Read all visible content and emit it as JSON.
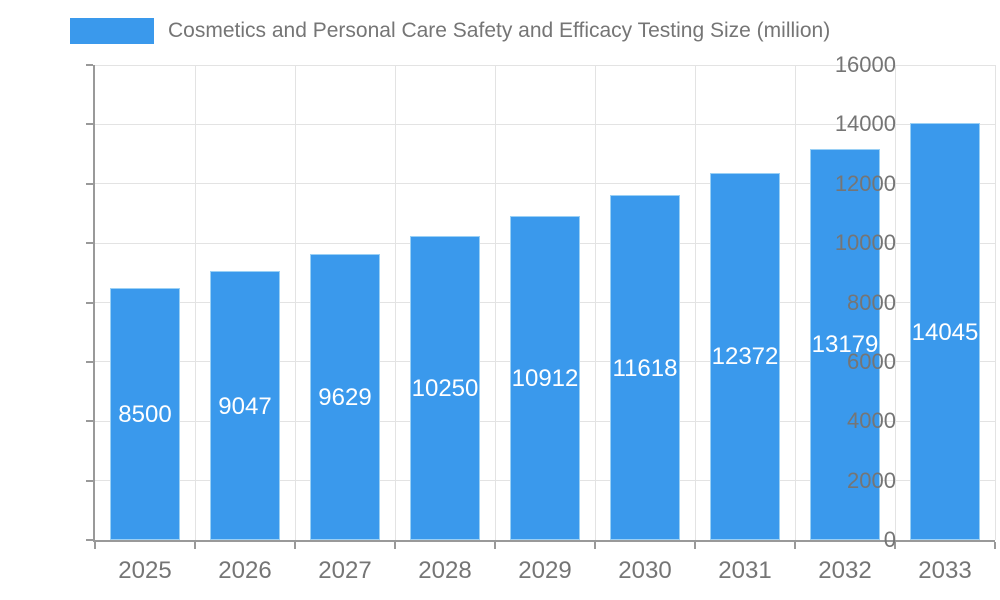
{
  "chart_data": {
    "type": "bar",
    "title": "Cosmetics and Personal Care Safety and Efficacy Testing Size (million)",
    "categories": [
      "2025",
      "2026",
      "2027",
      "2028",
      "2029",
      "2030",
      "2031",
      "2032",
      "2033"
    ],
    "values": [
      8500,
      9047,
      9629,
      10250,
      10912,
      11618,
      12372,
      13179,
      14045
    ],
    "xlabel": "",
    "ylabel": "",
    "ylim": [
      0,
      16000
    ],
    "yticks": [
      0,
      2000,
      4000,
      6000,
      8000,
      10000,
      12000,
      14000,
      16000
    ],
    "grid": true,
    "legend_position": "top",
    "value_labels": "inside-center"
  },
  "colors": {
    "bar_fill": "#3A99EC",
    "bar_border": "#9AD0F5",
    "grid_line": "#E3E3E3",
    "axis_line": "#999999",
    "tick_text": "#757575",
    "value_label_text": "#FFFFFF",
    "background": "#FFFFFF"
  },
  "legend": {
    "swatch_icon": "legend-swatch-rect",
    "label": "Cosmetics and Personal Care Safety and Efficacy Testing Size (million)"
  }
}
